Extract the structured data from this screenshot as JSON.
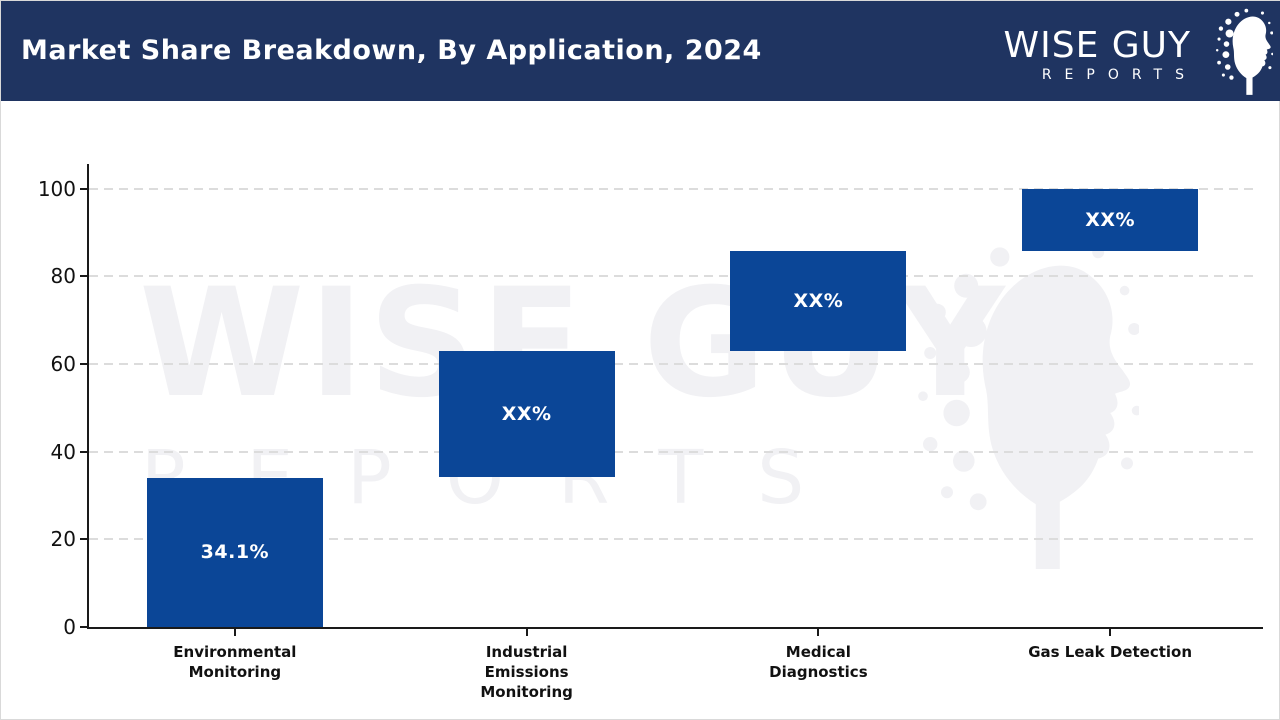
{
  "header": {
    "title": "Market Share Breakdown, By Application, 2024",
    "bg_color": "#1F3461",
    "logo": {
      "line1": "WISE GUY",
      "line2": "REPORTS"
    }
  },
  "watermark": {
    "line1": "WISE GUY",
    "line2": "REPORTS"
  },
  "chart_data": {
    "type": "bar",
    "subtype": "waterfall-cumulative-percent",
    "title": "Market Share Breakdown, By Application, 2024",
    "xlabel": "",
    "ylabel": "",
    "ylim": [
      0,
      105
    ],
    "grid": "horizontal-dashed",
    "legend": "none",
    "bar_color": "#0B4697",
    "axis_color": "#1a1a1a",
    "gridline_color": "#dcdcdc",
    "yticks": [
      0,
      20,
      40,
      60,
      80,
      100
    ],
    "categories": [
      [
        "Environmental",
        "Monitoring"
      ],
      [
        "Industrial",
        "Emissions",
        "Monitoring"
      ],
      [
        "Medical",
        "Diagnostics"
      ],
      [
        "Gas Leak Detection"
      ]
    ],
    "segments": [
      {
        "category": "Environmental Monitoring",
        "from": 0,
        "to": 34.1,
        "label": "34.1%"
      },
      {
        "category": "Industrial Emissions Monitoring",
        "from": 34.1,
        "to": 63.0,
        "label": "XX%"
      },
      {
        "category": "Medical Diagnostics",
        "from": 63.0,
        "to": 85.8,
        "label": "XX%"
      },
      {
        "category": "Gas Leak Detection",
        "from": 85.8,
        "to": 100.0,
        "label": "XX%"
      }
    ]
  }
}
